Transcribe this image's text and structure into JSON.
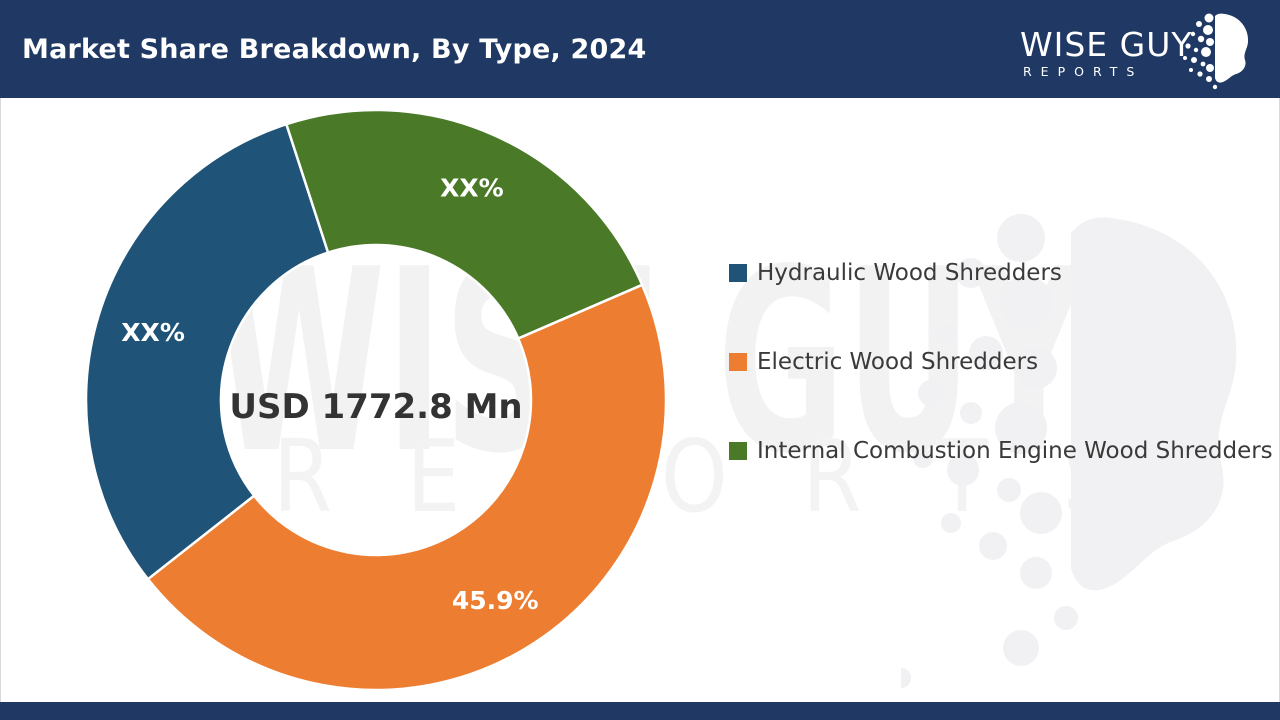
{
  "header": {
    "title": "Market Share Breakdown, By Type, 2024",
    "logo": {
      "line1": "WISE GUY",
      "line2": "REPORTS"
    }
  },
  "watermark": {
    "line1": "WISE GUY",
    "line2": "REPORTS"
  },
  "chart_data": {
    "type": "pie",
    "variant": "donut",
    "title": "Market Share Breakdown, By Type, 2024",
    "center_label": "USD 1772.8 Mn",
    "legend_position": "right",
    "start_angle_deg": 108,
    "direction": "counterclockwise",
    "segments": [
      {
        "name": "Hydraulic Wood Shredders",
        "display_label": "XX%",
        "labeled_value": "XX%",
        "arc_pct_estimated": 30.6,
        "color": "#1f5377"
      },
      {
        "name": "Electric Wood Shredders",
        "display_label": "45.9%",
        "labeled_value": "45.9%",
        "arc_pct_estimated": 45.9,
        "color": "#ec7d31"
      },
      {
        "name": "Internal Combustion Engine Wood Shredders",
        "display_label": "XX%",
        "labeled_value": "XX%",
        "arc_pct_estimated": 23.5,
        "color": "#4a7a28"
      }
    ]
  },
  "colors": {
    "header_bg": "#1f3864",
    "footer_bg": "#1f3864",
    "page_bg": "#ffffff",
    "slice_blue": "#1f5377",
    "slice_orange": "#ec7d31",
    "slice_green": "#4a7a28",
    "legend_text": "#3a3a3a",
    "center_text": "#333333",
    "watermark": "#f2f2f3"
  }
}
